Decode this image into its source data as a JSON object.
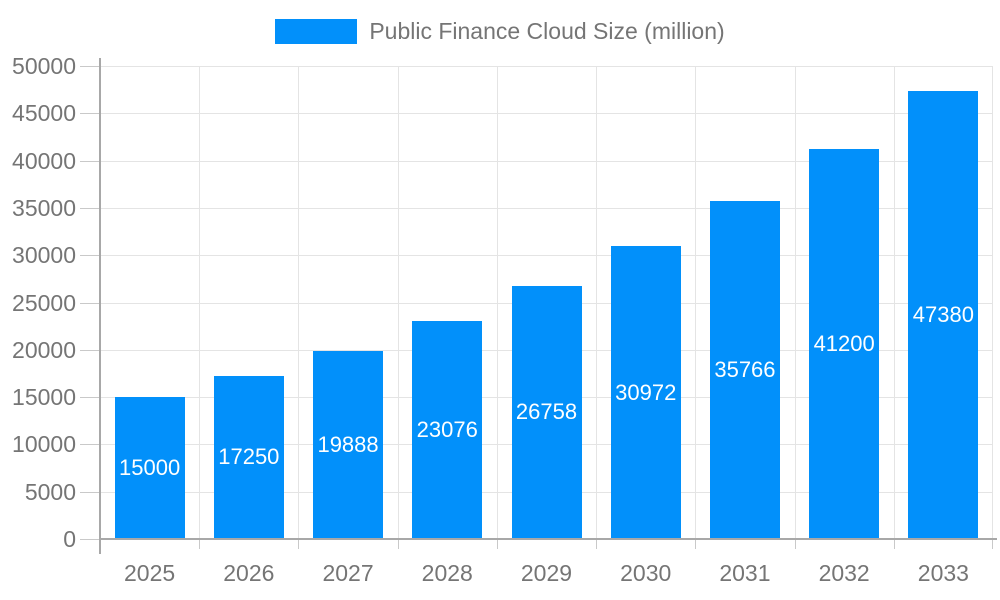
{
  "chart_data": {
    "type": "bar",
    "title": "Public Finance Cloud Size (million)",
    "categories": [
      "2025",
      "2026",
      "2027",
      "2028",
      "2029",
      "2030",
      "2031",
      "2032",
      "2033"
    ],
    "values": [
      15000,
      17250,
      19888,
      23076,
      26758,
      30972,
      35766,
      41200,
      47380
    ],
    "value_labels": [
      "15000",
      "17250",
      "19888",
      "23076",
      "26758",
      "30972",
      "35766",
      "41200",
      "47380"
    ],
    "y_tick_labels": [
      "0",
      "5000",
      "10000",
      "15000",
      "20000",
      "25000",
      "30000",
      "35000",
      "40000",
      "45000",
      "50000"
    ],
    "ylim": [
      0,
      50000
    ],
    "y_tick_step": 5000,
    "xlabel": "",
    "ylabel": "",
    "grid": true,
    "legend_position": "top",
    "colors": {
      "bar": "#0290fa",
      "bar_value_text": "#ffffff",
      "axis_text": "#757575",
      "legend_text": "#757575",
      "grid_line": "#e4e4e4",
      "tick_line": "#c9c9c9",
      "axis_line": "#a8a8a8",
      "background": "#ffffff"
    }
  }
}
